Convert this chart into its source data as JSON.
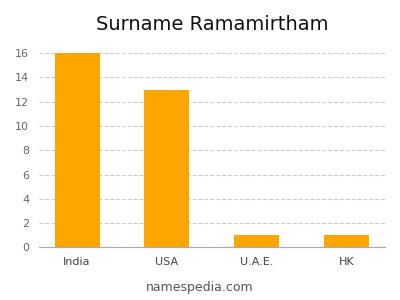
{
  "title": "Surname Ramamirtham",
  "categories": [
    "India",
    "USA",
    "U.A.E.",
    "HK"
  ],
  "values": [
    16,
    13,
    1,
    1
  ],
  "bar_color": "#FFA500",
  "ylim": [
    0,
    17
  ],
  "yticks": [
    0,
    2,
    4,
    6,
    8,
    10,
    12,
    14,
    16
  ],
  "ylabel": "",
  "xlabel": "",
  "footer": "namespedia.com",
  "background_color": "#ffffff",
  "title_fontsize": 14,
  "tick_fontsize": 8,
  "footer_fontsize": 9,
  "grid_color": "#cccccc",
  "bar_width": 0.5
}
